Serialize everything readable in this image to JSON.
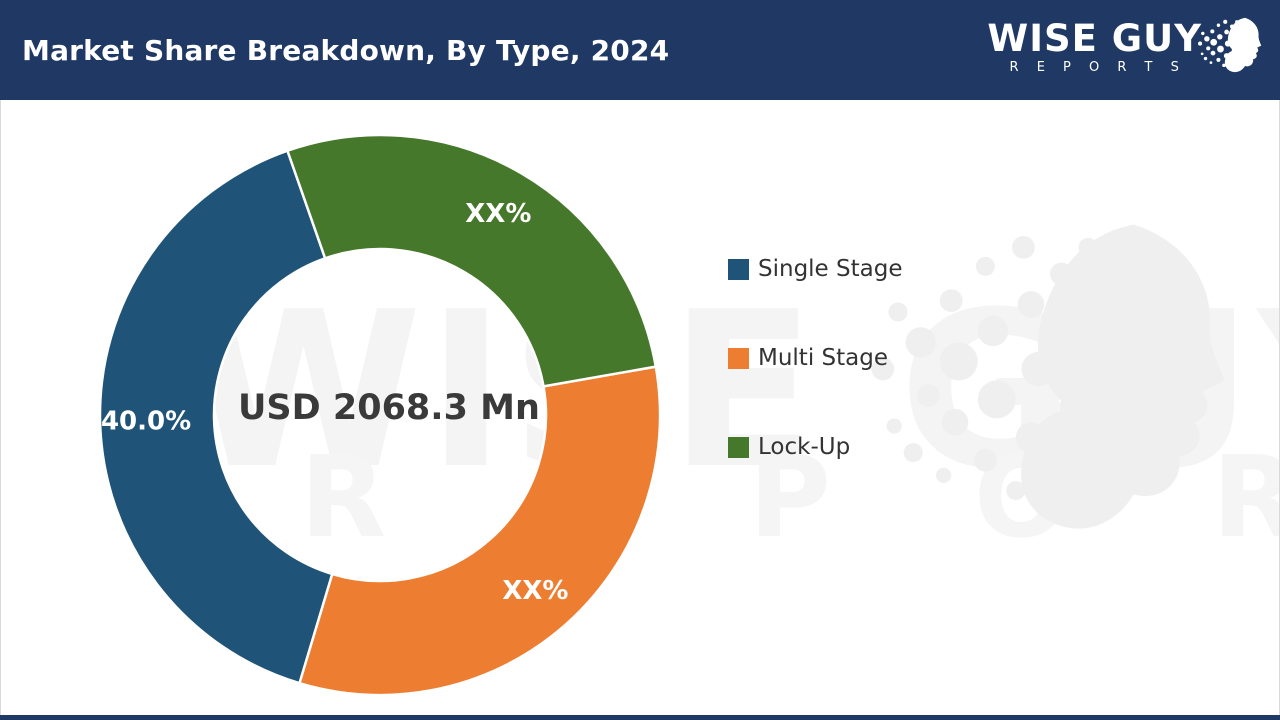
{
  "header": {
    "title": "Market Share Breakdown, By Type, 2024",
    "bg_color": "#1F3864",
    "logo": {
      "line1": "WISE GUY",
      "line2": "R E P O R T S"
    }
  },
  "watermark": {
    "line1": "WISE GUY",
    "line2": "R E P O R T S"
  },
  "chart_data": {
    "type": "pie",
    "subtype": "donut",
    "title": "Market Share Breakdown, By Type, 2024",
    "center_label": "USD 2068.3 Mn",
    "legend_position": "right",
    "start_angle_deg": 109.3,
    "direction": "counterclockwise",
    "slices": [
      {
        "name": "Single Stage",
        "display_label": "40.0%",
        "percent": 40.0,
        "color": "#1F5378"
      },
      {
        "name": "Multi Stage",
        "display_label": "XX%",
        "percent": 32.4,
        "color": "#ED7D31"
      },
      {
        "name": "Lock-Up",
        "display_label": "XX%",
        "percent": 27.6,
        "color": "#45782A"
      }
    ]
  }
}
